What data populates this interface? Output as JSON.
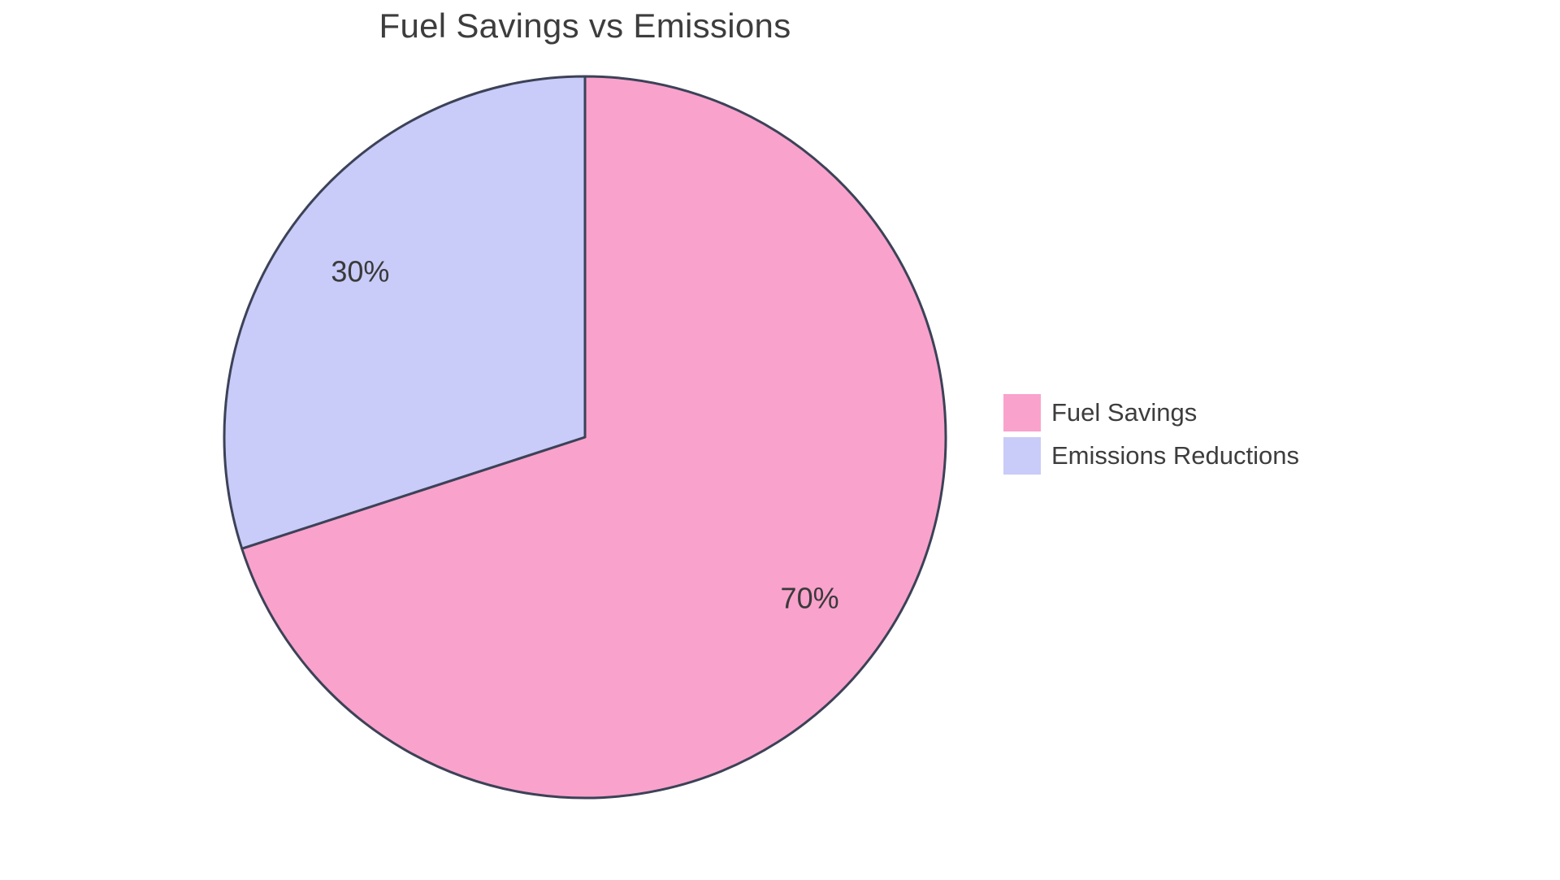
{
  "chart_data": {
    "type": "pie",
    "title": "Fuel Savings vs Emissions",
    "segments": [
      {
        "label": "Fuel Savings",
        "value": 70,
        "percent_label": "70%",
        "color": "#f9a2cc"
      },
      {
        "label": "Emissions Reductions",
        "value": 30,
        "percent_label": "30%",
        "color": "#c9cbf8"
      }
    ],
    "start_angle_deg": -90,
    "direction": "clockwise",
    "stroke_color": "#3c4257",
    "stroke_width": 3,
    "label_color": "#3a3a3a",
    "label_font_size": 36,
    "legend_position": "right",
    "background": "#ffffff"
  },
  "legend": {
    "items": [
      {
        "label": "Fuel Savings",
        "color": "#f9a2cc"
      },
      {
        "label": "Emissions Reductions",
        "color": "#c9cbf8"
      }
    ]
  }
}
